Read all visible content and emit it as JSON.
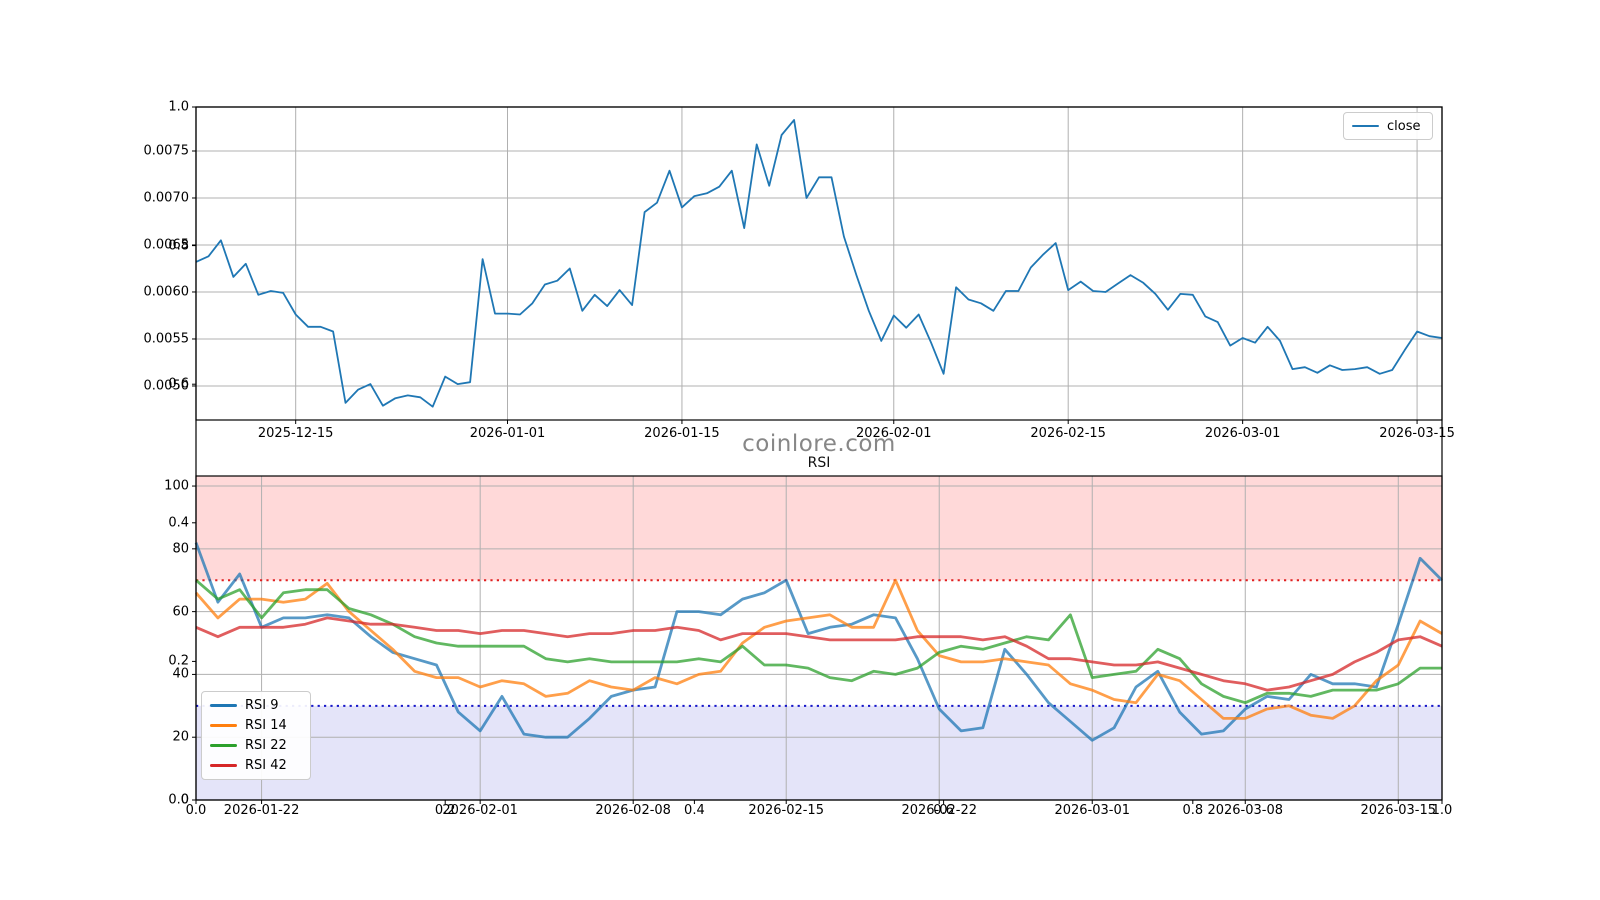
{
  "watermark": "coinlore.com",
  "chart_data": [
    {
      "type": "line",
      "name": "close",
      "legend_position": "upper right",
      "grid": true,
      "color": "#1f77b4",
      "x_start_date": "2025-12-07",
      "x_end_date": "2026-03-17",
      "freq": "daily",
      "x_tick_labels": [
        {
          "label": "2025-12-15",
          "index": 8
        },
        {
          "label": "2026-01-01",
          "index": 25
        },
        {
          "label": "2026-01-15",
          "index": 39
        },
        {
          "label": "2026-02-01",
          "index": 56
        },
        {
          "label": "2026-02-15",
          "index": 70
        },
        {
          "label": "2026-03-01",
          "index": 84
        },
        {
          "label": "2026-03-15",
          "index": 98
        }
      ],
      "y_ticks": [
        {
          "label": "0.0075",
          "value": 0.0075
        },
        {
          "label": "0.0070",
          "value": 0.007
        },
        {
          "label": "0.0065",
          "value": 0.0065
        },
        {
          "label": "0.0060",
          "value": 0.006
        },
        {
          "label": "0.0055",
          "value": 0.0055
        },
        {
          "label": "0.0050",
          "value": 0.005
        }
      ],
      "ylim": [
        0.004638,
        0.007968
      ],
      "values": [
        0.00632,
        0.00638,
        0.00655,
        0.00616,
        0.0063,
        0.00597,
        0.00601,
        0.00599,
        0.00576,
        0.00563,
        0.00563,
        0.00558,
        0.00482,
        0.00496,
        0.00502,
        0.00479,
        0.00487,
        0.0049,
        0.00488,
        0.00478,
        0.0051,
        0.00502,
        0.00504,
        0.00635,
        0.00577,
        0.00577,
        0.00576,
        0.00588,
        0.00608,
        0.00612,
        0.00625,
        0.0058,
        0.00597,
        0.00585,
        0.00602,
        0.00586,
        0.00685,
        0.00695,
        0.00729,
        0.0069,
        0.00702,
        0.00705,
        0.00712,
        0.00729,
        0.00668,
        0.00757,
        0.00713,
        0.00767,
        0.00783,
        0.007,
        0.00722,
        0.00722,
        0.00659,
        0.00618,
        0.0058,
        0.00548,
        0.00575,
        0.00562,
        0.00576,
        0.00546,
        0.00513,
        0.00605,
        0.00592,
        0.00588,
        0.0058,
        0.00601,
        0.00601,
        0.00626,
        0.0064,
        0.00652,
        0.00602,
        0.00611,
        0.00601,
        0.006,
        0.00609,
        0.00618,
        0.0061,
        0.00598,
        0.00581,
        0.00598,
        0.00597,
        0.00574,
        0.00568,
        0.00543,
        0.00551,
        0.00546,
        0.00563,
        0.00548,
        0.00518,
        0.0052,
        0.00514,
        0.00522,
        0.00517,
        0.00518,
        0.0052,
        0.00513,
        0.00517,
        0.00538,
        0.00558,
        0.00553,
        0.00551
      ]
    },
    {
      "type": "line",
      "title": "RSI",
      "legend_position": "lower left",
      "grid": true,
      "x_start_date": "2026-01-19",
      "x_end_date": "2026-03-17",
      "freq": "daily",
      "x_tick_labels": [
        {
          "label": "2026-01-22",
          "index": 3
        },
        {
          "label": "2026-02-01",
          "index": 13
        },
        {
          "label": "2026-02-08",
          "index": 20
        },
        {
          "label": "2026-02-15",
          "index": 27
        },
        {
          "label": "2026-02-22",
          "index": 34
        },
        {
          "label": "2026-03-01",
          "index": 41
        },
        {
          "label": "2026-03-08",
          "index": 48
        },
        {
          "label": "2026-03-15",
          "index": 55
        }
      ],
      "y_ticks": [
        {
          "label": "100",
          "value": 100
        },
        {
          "label": "80",
          "value": 80
        },
        {
          "label": "60",
          "value": 60
        },
        {
          "label": "40",
          "value": 40
        },
        {
          "label": "20",
          "value": 20
        },
        {
          "label": "0",
          "value": 0
        }
      ],
      "ylim": [
        0,
        103.2
      ],
      "overbought_level": 70,
      "oversold_level": 30,
      "overbought_band_color": "rgba(255,0,0,0.15)",
      "oversold_band_color": "rgba(20,20,200,0.115)",
      "overbought_line_color": "#e01f1f",
      "oversold_line_color": "#1515c8",
      "series": [
        {
          "name": "RSI 9",
          "color": "#1f77b4",
          "values": [
            82,
            63,
            72,
            55,
            58,
            58,
            59,
            58,
            52,
            47,
            45,
            43,
            28,
            22,
            33,
            21,
            20,
            20,
            26,
            33,
            35,
            36,
            60,
            60,
            59,
            64,
            66,
            70,
            53,
            55,
            56,
            59,
            58,
            45,
            29,
            22,
            23,
            48,
            40,
            31,
            25,
            19,
            23,
            36,
            41,
            28,
            21,
            22,
            29,
            33,
            32,
            40,
            37,
            37,
            36,
            56,
            77,
            70
          ]
        },
        {
          "name": "RSI 14",
          "color": "#ff7f0e",
          "values": [
            66,
            58,
            64,
            64,
            63,
            64,
            69,
            60,
            54,
            48,
            41,
            39,
            39,
            36,
            38,
            37,
            33,
            34,
            38,
            36,
            35,
            39,
            37,
            40,
            41,
            50,
            55,
            57,
            58,
            59,
            55,
            55,
            70,
            54,
            46,
            44,
            44,
            45,
            44,
            43,
            37,
            35,
            32,
            31,
            40,
            38,
            32,
            26,
            26,
            29,
            30,
            27,
            26,
            30,
            38,
            43,
            57,
            53
          ]
        },
        {
          "name": "RSI 22",
          "color": "#2ca02c",
          "values": [
            70,
            64,
            67,
            58,
            66,
            67,
            67,
            61,
            59,
            56,
            52,
            50,
            49,
            49,
            49,
            49,
            45,
            44,
            45,
            44,
            44,
            44,
            44,
            45,
            44,
            49,
            43,
            43,
            42,
            39,
            38,
            41,
            40,
            42,
            47,
            49,
            48,
            50,
            52,
            51,
            59,
            39,
            40,
            41,
            48,
            45,
            37,
            33,
            31,
            34,
            34,
            33,
            35,
            35,
            35,
            37,
            42,
            42
          ]
        },
        {
          "name": "RSI 42",
          "color": "#d62728",
          "values": [
            55,
            52,
            55,
            55,
            55,
            56,
            58,
            57,
            56,
            56,
            55,
            54,
            54,
            53,
            54,
            54,
            53,
            52,
            53,
            53,
            54,
            54,
            55,
            54,
            51,
            53,
            53,
            53,
            52,
            51,
            51,
            51,
            51,
            52,
            52,
            52,
            51,
            52,
            49,
            45,
            45,
            44,
            43,
            43,
            44,
            42,
            40,
            38,
            37,
            35,
            36,
            38,
            40,
            44,
            47,
            51,
            52,
            49
          ]
        }
      ]
    },
    {
      "type": "overlay-axis",
      "xlim": [
        0,
        1
      ],
      "ylim": [
        0,
        1
      ],
      "x_tick_labels": [
        "0.0",
        "0.2",
        "0.4",
        "0.6",
        "0.8",
        "1.0"
      ],
      "y_tick_labels": [
        "1.0",
        "0.8",
        "0.6",
        "0.4",
        "0.2",
        "0.0"
      ]
    }
  ],
  "colors": {
    "grid": "#b0b0b0",
    "spine": "#000000",
    "watermark_text": "#878787",
    "tick_text": "#000000"
  }
}
